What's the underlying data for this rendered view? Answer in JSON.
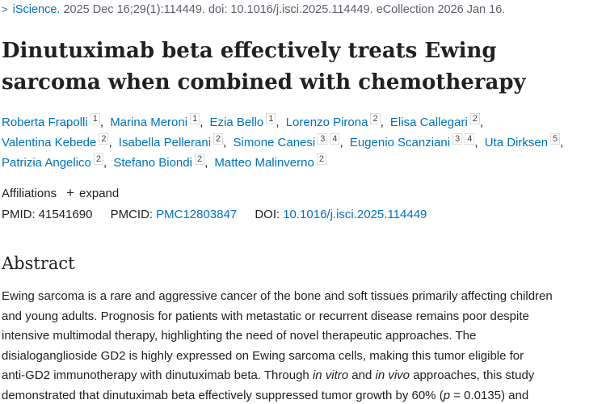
{
  "citation": {
    "chevron": ">",
    "journal": "iScience.",
    "details": "2025 Dec 16;29(1):114449. doi: 10.1016/j.isci.2025.114449. eCollection 2026 Jan 16."
  },
  "title": "Dinutuximab beta effectively treats Ewing sarcoma when combined with chemotherapy",
  "authors": [
    {
      "name": "Roberta Frapolli",
      "aff": "1"
    },
    {
      "name": "Marina Meroni",
      "aff": "1"
    },
    {
      "name": "Ezia Bello",
      "aff": "1"
    },
    {
      "name": "Lorenzo Pirona",
      "aff": "2"
    },
    {
      "name": "Elisa Callegari",
      "aff": "2"
    },
    {
      "name": "Valentina Kebede",
      "aff": "2"
    },
    {
      "name": "Isabella Pellerani",
      "aff": "2"
    },
    {
      "name": "Simone Canesi",
      "aff": "3",
      "aff2": "4"
    },
    {
      "name": "Eugenio Scanziani",
      "aff": "3",
      "aff2": "4"
    },
    {
      "name": "Uta Dirksen",
      "aff": "5"
    },
    {
      "name": "Patrizia Angelico",
      "aff": "2"
    },
    {
      "name": "Stefano Biondi",
      "aff": "2"
    },
    {
      "name": "Matteo Malinverno",
      "aff": "2"
    }
  ],
  "affiliations": {
    "label": "Affiliations",
    "expand_label": "expand"
  },
  "ids": {
    "pmid_label": "PMID:",
    "pmid": "41541690",
    "pmcid_label": "PMCID:",
    "pmcid": "PMC12803847",
    "doi_label": "DOI:",
    "doi": "10.1016/j.isci.2025.114449"
  },
  "abstract": {
    "heading": "Abstract",
    "line1": "Ewing sarcoma is a rare and aggressive cancer of the bone and soft tissues primarily affecting children",
    "line2": "and young adults. Prognosis for patients with metastatic or recurrent disease remains poor despite",
    "line3": "intensive multimodal therapy, highlighting the need of novel therapeutic approaches. The",
    "line4": "disialoganglioside GD2 is highly expressed on Ewing sarcoma cells, making this tumor eligible for",
    "line5_a": "anti-GD2 immunotherapy with dinutuximab beta. Through ",
    "line5_b": "in vitro",
    "line5_c": " and ",
    "line5_d": "in vivo",
    "line5_e": " approaches, this study",
    "line6_a": "demonstrated that dinutuximab beta effectively suppressed tumor growth by 60% (",
    "line6_b": "p",
    "line6_c": " = 0.0135) and"
  }
}
